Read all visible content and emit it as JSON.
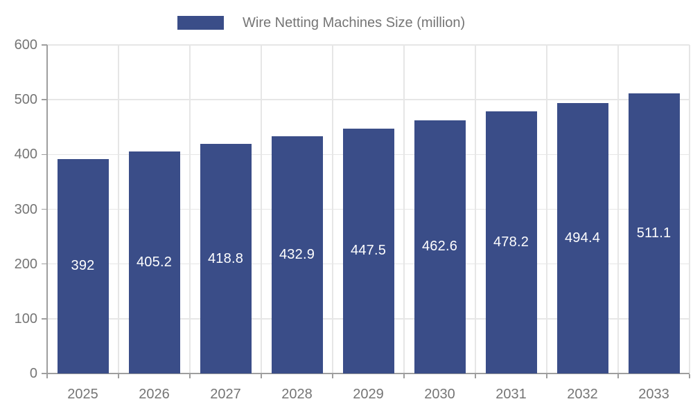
{
  "chart_data": {
    "type": "bar",
    "title": "Wire Netting Machines Size (million)",
    "legend_label": "Wire Netting Machines Size (million)",
    "legend_position": "top",
    "categories": [
      "2025",
      "2026",
      "2027",
      "2028",
      "2029",
      "2030",
      "2031",
      "2032",
      "2033"
    ],
    "values": [
      392,
      405.2,
      418.8,
      432.9,
      447.5,
      462.6,
      478.2,
      494.4,
      511.1
    ],
    "value_labels": [
      "392",
      "405.2",
      "418.8",
      "432.9",
      "447.5",
      "462.6",
      "478.2",
      "494.4",
      "511.1"
    ],
    "xlabel": "",
    "ylabel": "",
    "ylim": [
      0,
      600
    ],
    "yticks": [
      0,
      100,
      200,
      300,
      400,
      500,
      600
    ],
    "grid": true,
    "colors": {
      "bar": "#3A4D88",
      "value_label": "#ffffff",
      "axis_text": "#757575",
      "legend_text": "#757575",
      "grid_line": "#e6e6e6",
      "axis_line": "#9e9e9e",
      "background": "#ffffff"
    }
  }
}
